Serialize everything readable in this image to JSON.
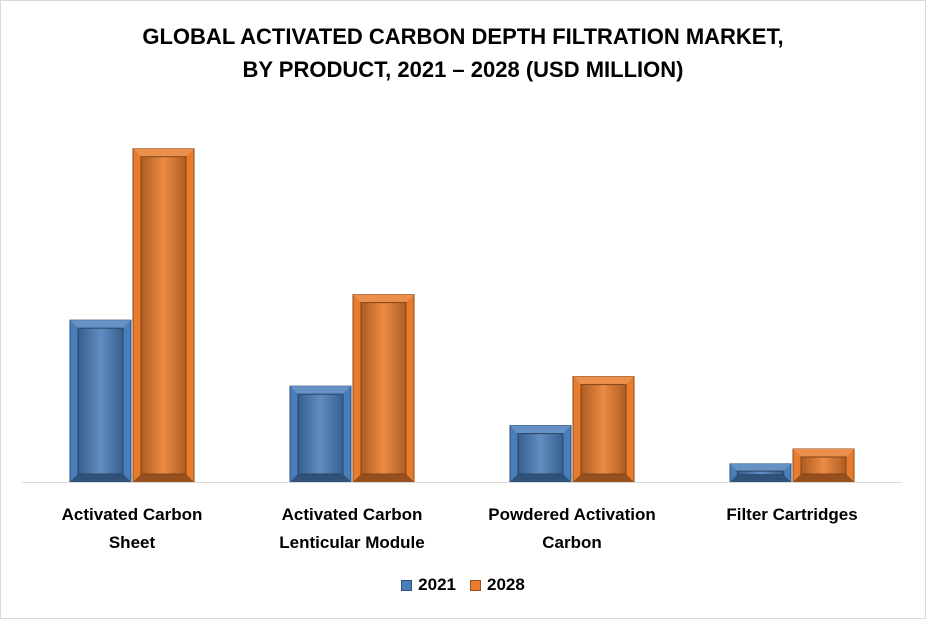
{
  "chart_data": {
    "type": "bar",
    "title_lines": [
      "GLOBAL ACTIVATED CARBON DEPTH FILTRATION MARKET,",
      "BY PRODUCT, 2021 – 2028 (USD MILLION)"
    ],
    "categories": [
      [
        "Activated Carbon",
        "Sheet"
      ],
      [
        "Activated Carbon",
        "Lenticular Module"
      ],
      [
        "Powdered Activation",
        "Carbon"
      ],
      [
        "Filter Cartridges"
      ]
    ],
    "series": [
      {
        "name": "2021",
        "color": "#4a7ebb",
        "values": [
          152,
          90,
          53,
          17
        ]
      },
      {
        "name": "2028",
        "color": "#e87b2c",
        "values": [
          313,
          176,
          99,
          31
        ]
      }
    ],
    "ylim": [
      0,
      340
    ],
    "grid": false,
    "legend_position": "bottom"
  }
}
